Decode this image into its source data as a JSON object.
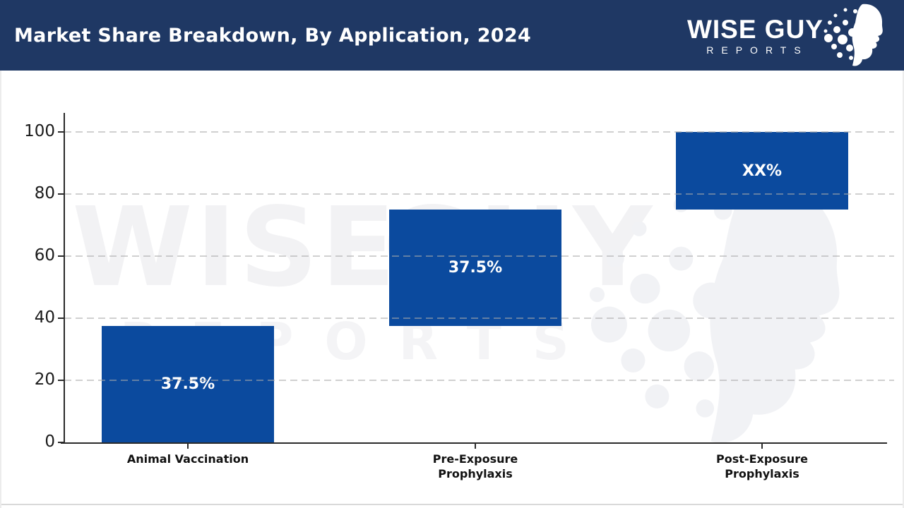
{
  "header": {
    "title": "Market Share Breakdown, By Application, 2024",
    "bg_color": "#1f3864",
    "logo": {
      "line1": "WISE GUY",
      "line2": "REPORTS"
    }
  },
  "watermark": {
    "line1a": "WISE",
    "line1b": "GUY",
    "line2": "REPORTS"
  },
  "chart_data": {
    "type": "bar",
    "subtype": "waterfall",
    "title": "Market Share Breakdown, By Application, 2024",
    "categories": [
      "Animal Vaccination",
      "Pre-Exposure\nProphylaxis",
      "Post-Exposure\nProphylaxis"
    ],
    "segments": [
      {
        "category": "Animal Vaccination",
        "start": 0,
        "end": 37.5,
        "label": "37.5%"
      },
      {
        "category": "Pre-Exposure Prophylaxis",
        "start": 37.5,
        "end": 75,
        "label": "37.5%"
      },
      {
        "category": "Post-Exposure Prophylaxis",
        "start": 75,
        "end": 100,
        "label": "XX%"
      }
    ],
    "xlabel": "",
    "ylabel": "",
    "ylim": [
      0,
      100
    ],
    "yticks": [
      0,
      20,
      40,
      60,
      80,
      100
    ],
    "grid": "horizontal-dashed",
    "legend": "none",
    "bar_color": "#0b4a9e",
    "label_color": "#ffffff",
    "axis_color": "#2b2b2b",
    "grid_color": "#cfcfcf"
  }
}
